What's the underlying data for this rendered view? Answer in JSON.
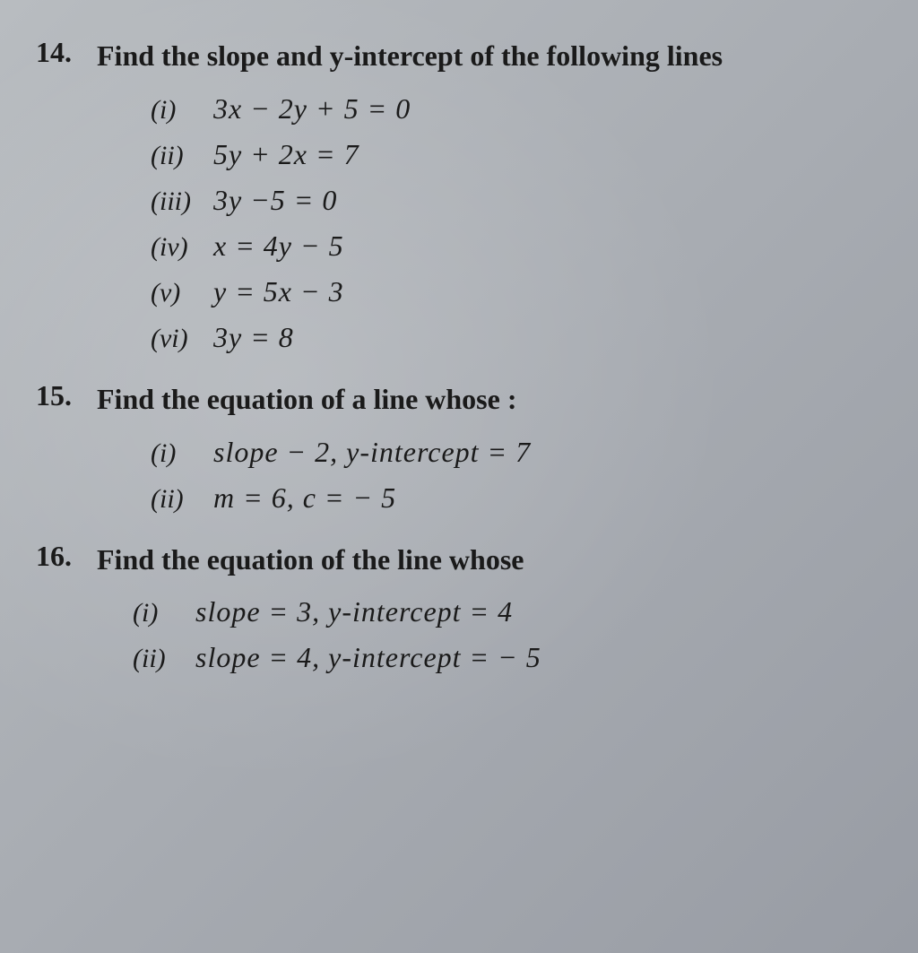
{
  "page": {
    "background_color": "#a8acb2",
    "text_color": "#1a1a1a",
    "font_family": "Georgia, serif"
  },
  "questions": [
    {
      "number": "14.",
      "text": "Find the slope and y-intercept of the following lines",
      "subitems": [
        {
          "label": "(i)",
          "content": "3x − 2y + 5 = 0"
        },
        {
          "label": "(ii)",
          "content": "5y + 2x = 7"
        },
        {
          "label": "(iii)",
          "content": "3y −5 = 0"
        },
        {
          "label": "(iv)",
          "content": "x = 4y − 5"
        },
        {
          "label": "(v)",
          "content": "y = 5x − 3"
        },
        {
          "label": "(vi)",
          "content": "3y = 8"
        }
      ]
    },
    {
      "number": "15.",
      "text": "Find the equation of a line whose :",
      "subitems": [
        {
          "label": "(i)",
          "content": "slope − 2, y-intercept = 7"
        },
        {
          "label": "(ii)",
          "content": "m = 6, c = − 5"
        }
      ]
    },
    {
      "number": "16.",
      "text": "Find the equation of the line whose",
      "subitems": [
        {
          "label": "(i)",
          "content": "slope = 3,  y-intercept = 4"
        },
        {
          "label": "(ii)",
          "content": "slope = 4,  y-intercept = − 5"
        }
      ]
    }
  ]
}
